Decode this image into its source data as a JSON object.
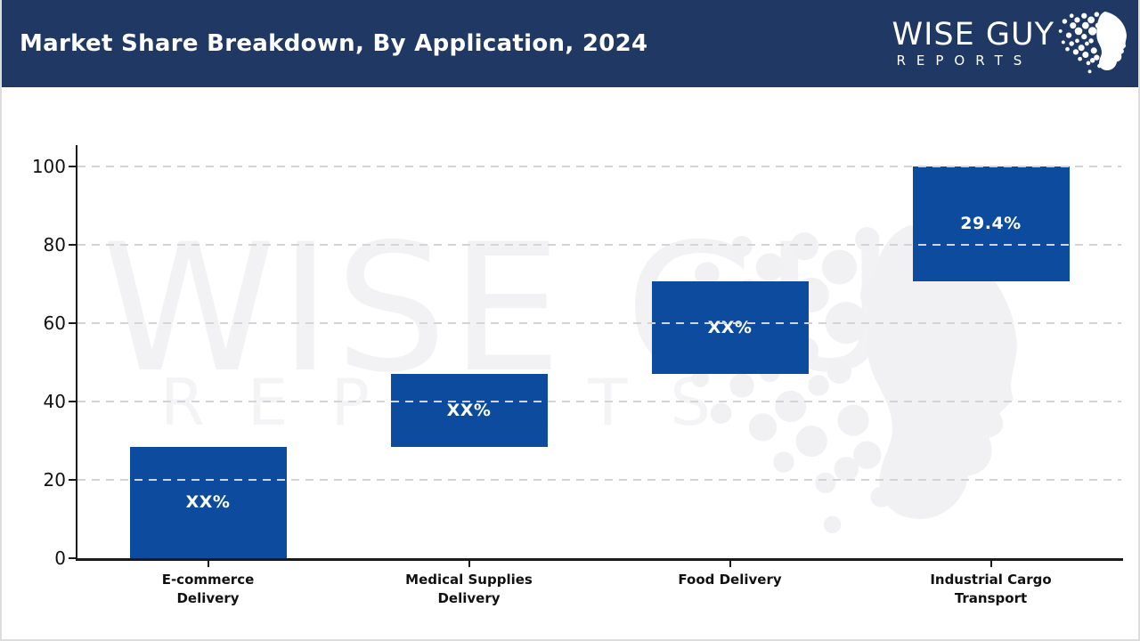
{
  "header": {
    "title": "Market Share Breakdown, By Application, 2024",
    "bg_color": "#1F3864",
    "logo": {
      "line1": "WISE GUY",
      "line2": "REPORTS",
      "face_icon": "dotted-head-profile"
    }
  },
  "watermark": {
    "line1": "WISE GUY",
    "line2": "REPORTS",
    "face_icon": "dotted-head-profile"
  },
  "chart_data": {
    "type": "bar",
    "subtype": "waterfall-stacked-segments",
    "title": "Market Share Breakdown, By Application, 2024",
    "categories": [
      [
        "E-commerce",
        "Delivery"
      ],
      [
        "Medical Supplies",
        "Delivery"
      ],
      [
        "Food Delivery"
      ],
      [
        "Industrial Cargo",
        "Transport"
      ]
    ],
    "segments": [
      {
        "category": "E-commerce Delivery",
        "start": 0,
        "end": 28.4,
        "value_pct": 28.4,
        "label": "XX%"
      },
      {
        "category": "Medical Supplies Delivery",
        "start": 28.4,
        "end": 47.0,
        "value_pct": 18.6,
        "label": "XX%"
      },
      {
        "category": "Food Delivery",
        "start": 47.0,
        "end": 70.6,
        "value_pct": 23.6,
        "label": "XX%"
      },
      {
        "category": "Industrial Cargo Transport",
        "start": 70.6,
        "end": 100,
        "value_pct": 29.4,
        "label": "29.4%"
      }
    ],
    "yticks": [
      0,
      20,
      40,
      60,
      80,
      100
    ],
    "ylim": [
      0,
      105
    ],
    "xlabel": "",
    "ylabel": "",
    "grid": "horizontal-dashed",
    "legend": "none",
    "bar_color": "#0C4B9E",
    "bar_label_color": "#FFFFFF",
    "grid_color": "#D4D4D4",
    "axis_color": "#1A1A1A",
    "watermark_color": "#F2F2F4"
  }
}
